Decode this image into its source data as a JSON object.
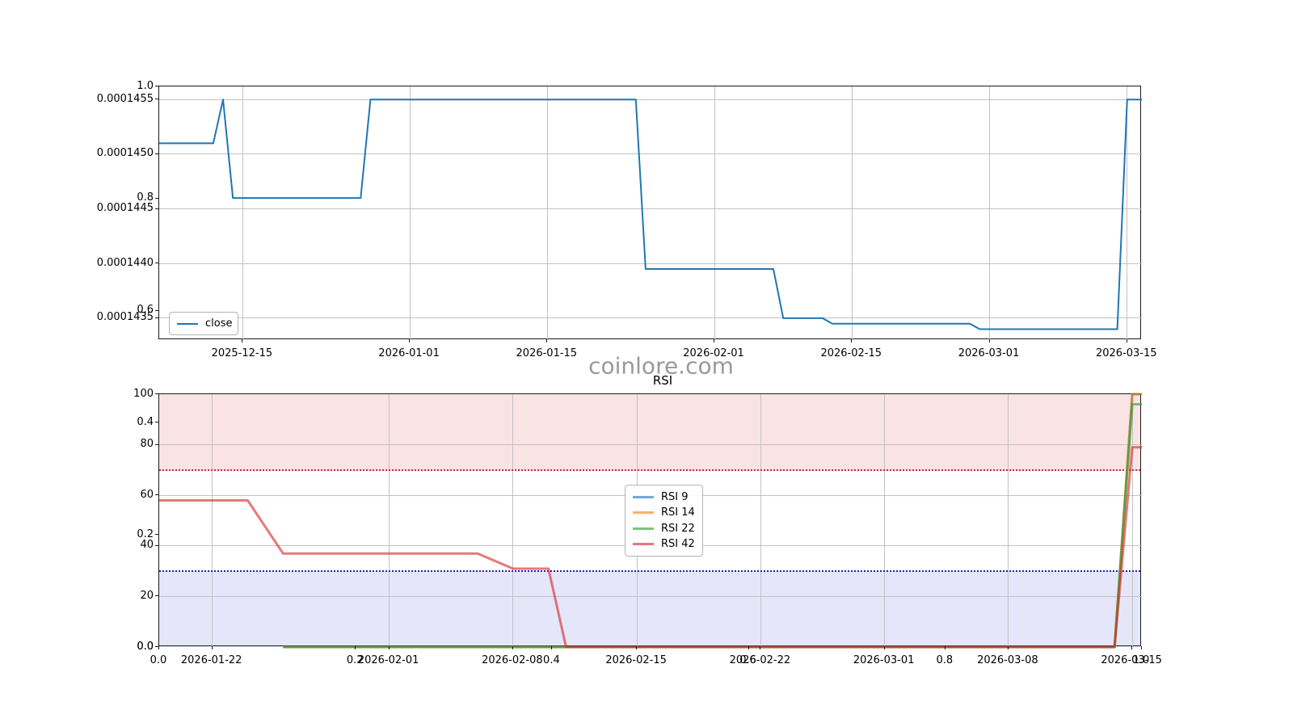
{
  "watermark": "coinlore.com",
  "overlay_axis": {
    "x_labels": [
      "0.0",
      "0.2",
      "0.4",
      "0.6",
      "0.8",
      "1.0"
    ],
    "y_labels": [
      "1.0",
      "0.8",
      "0.6",
      "0.4",
      "0.2",
      "0.0"
    ]
  },
  "chart_data": [
    {
      "type": "line",
      "title": "",
      "ylabel": "",
      "xlabel": "",
      "grid": true,
      "legend_position": "lower left",
      "xlim": [
        "2025-12-06T12:00:00",
        "2026-03-16T12:00:00"
      ],
      "ylim": [
        0.0001433,
        0.00014562
      ],
      "yticks": [
        {
          "v": 0.0001455,
          "label": "0.0001455"
        },
        {
          "v": 0.000145,
          "label": "0.0001450"
        },
        {
          "v": 0.0001445,
          "label": "0.0001445"
        },
        {
          "v": 0.000144,
          "label": "0.0001440"
        },
        {
          "v": 0.0001435,
          "label": "0.0001435"
        }
      ],
      "xticks": [
        {
          "t": "2025-12-15",
          "label": "2025-12-15"
        },
        {
          "t": "2026-01-01",
          "label": "2026-01-01"
        },
        {
          "t": "2026-01-15",
          "label": "2026-01-15"
        },
        {
          "t": "2026-02-01",
          "label": "2026-02-01"
        },
        {
          "t": "2026-02-15",
          "label": "2026-02-15"
        },
        {
          "t": "2026-03-01",
          "label": "2026-03-01"
        },
        {
          "t": "2026-03-15",
          "label": "2026-03-15"
        }
      ],
      "series": [
        {
          "name": "close",
          "color": "#1f77b4",
          "width": 2,
          "points": [
            [
              "2025-12-06T12:00:00",
              0.0001451
            ],
            [
              "2025-12-12",
              0.0001451
            ],
            [
              "2025-12-13",
              0.0001455
            ],
            [
              "2025-12-14",
              0.0001446
            ],
            [
              "2025-12-27",
              0.0001446
            ],
            [
              "2025-12-28",
              0.0001455
            ],
            [
              "2026-01-24",
              0.0001455
            ],
            [
              "2026-01-25",
              0.00014395
            ],
            [
              "2026-02-07",
              0.00014395
            ],
            [
              "2026-02-08",
              0.0001435
            ],
            [
              "2026-02-12",
              0.0001435
            ],
            [
              "2026-02-13",
              0.00014345
            ],
            [
              "2026-02-27",
              0.00014345
            ],
            [
              "2026-02-28",
              0.0001434
            ],
            [
              "2026-03-14",
              0.0001434
            ],
            [
              "2026-03-15",
              0.0001455
            ],
            [
              "2026-03-16T12:00:00",
              0.0001455
            ]
          ]
        }
      ]
    },
    {
      "type": "line",
      "title": "RSI",
      "ylabel": "",
      "xlabel": "",
      "grid": true,
      "legend_position": "center",
      "xlim": [
        "2026-01-19T00:00:00",
        "2026-03-15T13:00:00"
      ],
      "ylim": [
        0,
        100
      ],
      "bands": [
        {
          "from": 70,
          "to": 100,
          "color": "rgba(214,39,40,0.13)"
        },
        {
          "from": 0,
          "to": 30,
          "color": "rgba(60,60,215,0.13)"
        }
      ],
      "hlines": [
        {
          "v": 70,
          "color": "#cc1f3d",
          "style": "dotted"
        },
        {
          "v": 30,
          "color": "#2222b4",
          "style": "dotted"
        }
      ],
      "yticks": [
        {
          "v": 100,
          "label": "100"
        },
        {
          "v": 80,
          "label": "80"
        },
        {
          "v": 60,
          "label": "60"
        },
        {
          "v": 40,
          "label": "40"
        },
        {
          "v": 20,
          "label": "20"
        },
        {
          "v": 0,
          "label": "0.0"
        }
      ],
      "xticks": [
        {
          "t": "2026-01-22",
          "label": "2026-01-22"
        },
        {
          "t": "2026-02-01",
          "label": "2026-02-01"
        },
        {
          "t": "2026-02-08",
          "label": "2026-02-08"
        },
        {
          "t": "2026-02-15",
          "label": "2026-02-15"
        },
        {
          "t": "2026-02-22",
          "label": "2026-02-22"
        },
        {
          "t": "2026-03-01",
          "label": "2026-03-01"
        },
        {
          "t": "2026-03-08",
          "label": "2026-03-08"
        },
        {
          "t": "2026-03-15",
          "label": "2026-03-15"
        }
      ],
      "series": [
        {
          "name": "RSI 9",
          "color": "rgba(31,119,180,0.62)",
          "width": 3,
          "points": [
            [
              "2026-01-26",
              0
            ],
            [
              "2026-03-14",
              0
            ],
            [
              "2026-03-15",
              100
            ],
            [
              "2026-03-15T13:00:00",
              100
            ]
          ]
        },
        {
          "name": "RSI 14",
          "color": "rgba(255,127,14,0.62)",
          "width": 3,
          "points": [
            [
              "2026-01-26",
              0
            ],
            [
              "2026-03-14",
              0
            ],
            [
              "2026-03-15",
              100
            ],
            [
              "2026-03-15T13:00:00",
              100
            ]
          ]
        },
        {
          "name": "RSI 22",
          "color": "rgba(44,160,44,0.62)",
          "width": 3,
          "points": [
            [
              "2026-01-26",
              0
            ],
            [
              "2026-03-14",
              0
            ],
            [
              "2026-03-15",
              96
            ],
            [
              "2026-03-15T13:00:00",
              96
            ]
          ]
        },
        {
          "name": "RSI 42",
          "color": "rgba(214,39,40,0.62)",
          "width": 3,
          "points": [
            [
              "2026-01-19",
              58
            ],
            [
              "2026-01-24",
              58
            ],
            [
              "2026-01-26",
              37
            ],
            [
              "2026-02-06",
              37
            ],
            [
              "2026-02-08",
              31
            ],
            [
              "2026-02-10",
              31
            ],
            [
              "2026-02-11",
              0
            ],
            [
              "2026-03-14",
              0
            ],
            [
              "2026-03-15",
              79
            ],
            [
              "2026-03-15T13:00:00",
              79
            ]
          ]
        }
      ]
    }
  ]
}
